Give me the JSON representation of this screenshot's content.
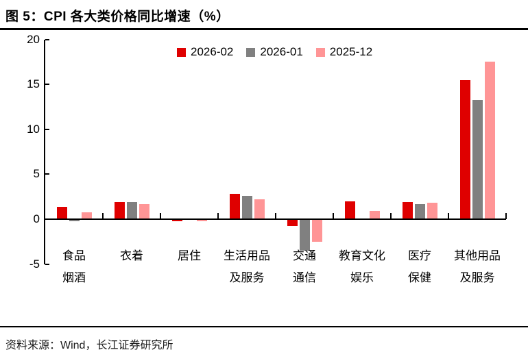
{
  "header": {
    "title": "图 5：CPI 各大类价格同比增速（%）"
  },
  "footer": {
    "source_text": "资料来源：Wind，长江证券研究所"
  },
  "colors": {
    "series_red": "#df0000",
    "series_gray": "#808080",
    "series_pink": "#ff9596",
    "axis": "#000000",
    "background": "#ffffff"
  },
  "chart_data": {
    "type": "bar",
    "title": "CPI 各大类价格同比增速（%）",
    "xlabel": "",
    "ylabel": "",
    "ylim": [
      -5,
      20
    ],
    "yticks": [
      20,
      15,
      10,
      5,
      0,
      -5
    ],
    "grid": false,
    "legend_position": "top-center",
    "categories": [
      "食品烟酒",
      "衣着",
      "居住",
      "生活用品及服务",
      "交通通信",
      "教育文化娱乐",
      "医疗保健",
      "其他用品及服务"
    ],
    "category_lines": [
      [
        "食品",
        "烟酒"
      ],
      [
        "衣着"
      ],
      [
        "居住"
      ],
      [
        "生活用品",
        "及服务"
      ],
      [
        "交通",
        "通信"
      ],
      [
        "教育文化",
        "娱乐"
      ],
      [
        "医疗",
        "保健"
      ],
      [
        "其他用品",
        "及服务"
      ]
    ],
    "series": [
      {
        "name": "2026-02",
        "color": "#df0000",
        "values": [
          1.4,
          1.9,
          -0.2,
          2.8,
          -0.8,
          2.0,
          1.9,
          15.5
        ]
      },
      {
        "name": "2026-01",
        "color": "#808080",
        "values": [
          -0.2,
          1.9,
          -0.1,
          2.6,
          -3.5,
          0.0,
          1.7,
          13.3
        ]
      },
      {
        "name": "2025-12",
        "color": "#ff9596",
        "values": [
          0.8,
          1.7,
          -0.2,
          2.2,
          -2.5,
          0.9,
          1.8,
          17.5
        ]
      }
    ]
  }
}
